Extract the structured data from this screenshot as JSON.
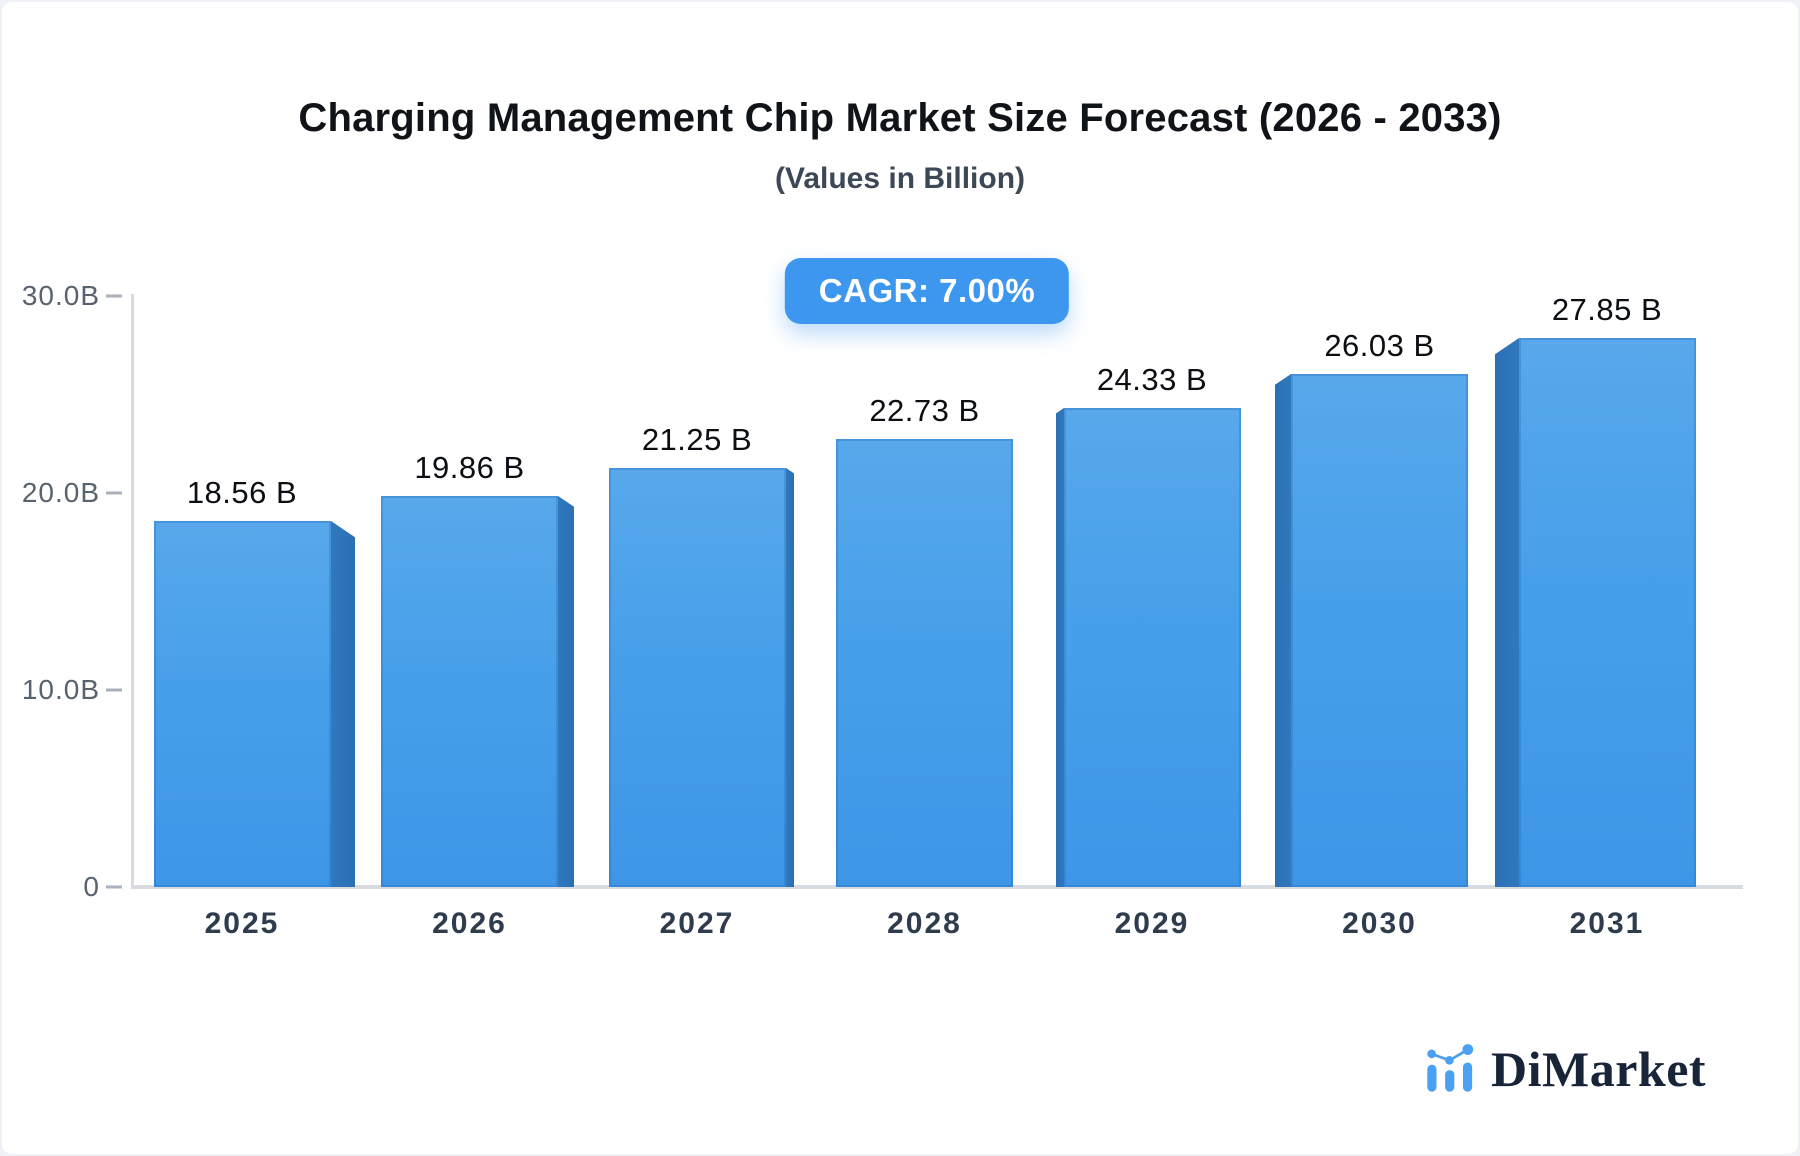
{
  "title": "Charging Management Chip Market Size Forecast (2026 - 2033)",
  "subtitle": "(Values in Billion)",
  "badge": {
    "label": "CAGR: 7.00%",
    "bg_color": "#3e97ee",
    "text_color": "#ffffff"
  },
  "chart_data": {
    "type": "bar",
    "categories": [
      "2025",
      "2026",
      "2027",
      "2028",
      "2029",
      "2030",
      "2031"
    ],
    "values": [
      18.56,
      19.86,
      21.25,
      22.73,
      24.33,
      26.03,
      27.85
    ],
    "value_labels": [
      "18.56 B",
      "19.86 B",
      "21.25 B",
      "22.73 B",
      "24.33 B",
      "26.03 B",
      "27.85 B"
    ],
    "unit": "Billion",
    "title": "Charging Management Chip Market Size Forecast (2026 - 2033)",
    "xlabel": "",
    "ylabel": "",
    "ylim": [
      0,
      30
    ],
    "y_ticks": [
      "30.0B",
      "20.0B",
      "10.0B",
      "0"
    ],
    "y_tick_values": [
      30,
      20,
      10,
      0
    ],
    "grid": false,
    "legend": false,
    "bar_face_color": "#46a0e9",
    "bar_side_color": "#2f74b8",
    "axis_color": "#d8dce1"
  },
  "logo": {
    "text": "DiMarket",
    "icon": "bar-line-chart-icon",
    "accent_color": "#4aa0f2"
  }
}
